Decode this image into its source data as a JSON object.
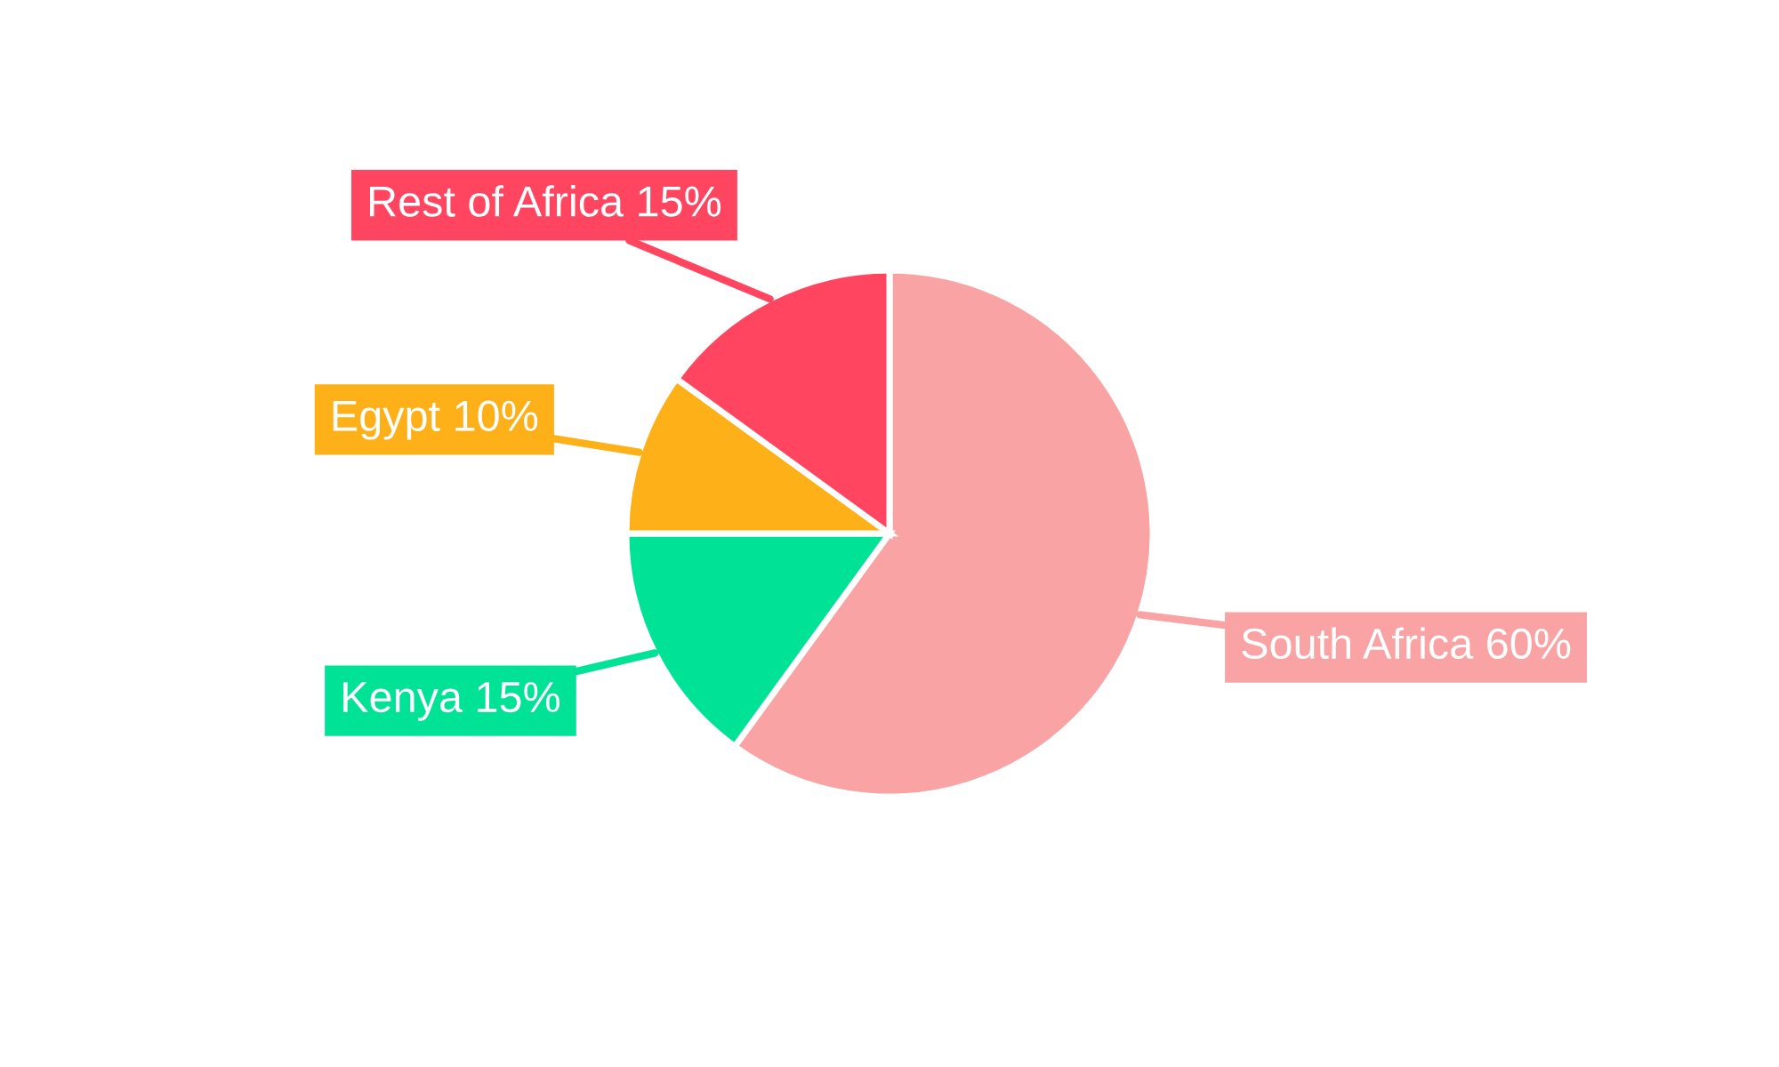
{
  "chart_data": {
    "type": "pie",
    "categories": [
      "South Africa",
      "Kenya",
      "Egypt",
      "Rest of Africa"
    ],
    "values": [
      60,
      15,
      10,
      15
    ],
    "value_labels": [
      "60%",
      "15%",
      "10%",
      "15%"
    ],
    "colors": [
      "#f9a3a4",
      "#00e396",
      "#feb019",
      "#ff4560"
    ]
  }
}
